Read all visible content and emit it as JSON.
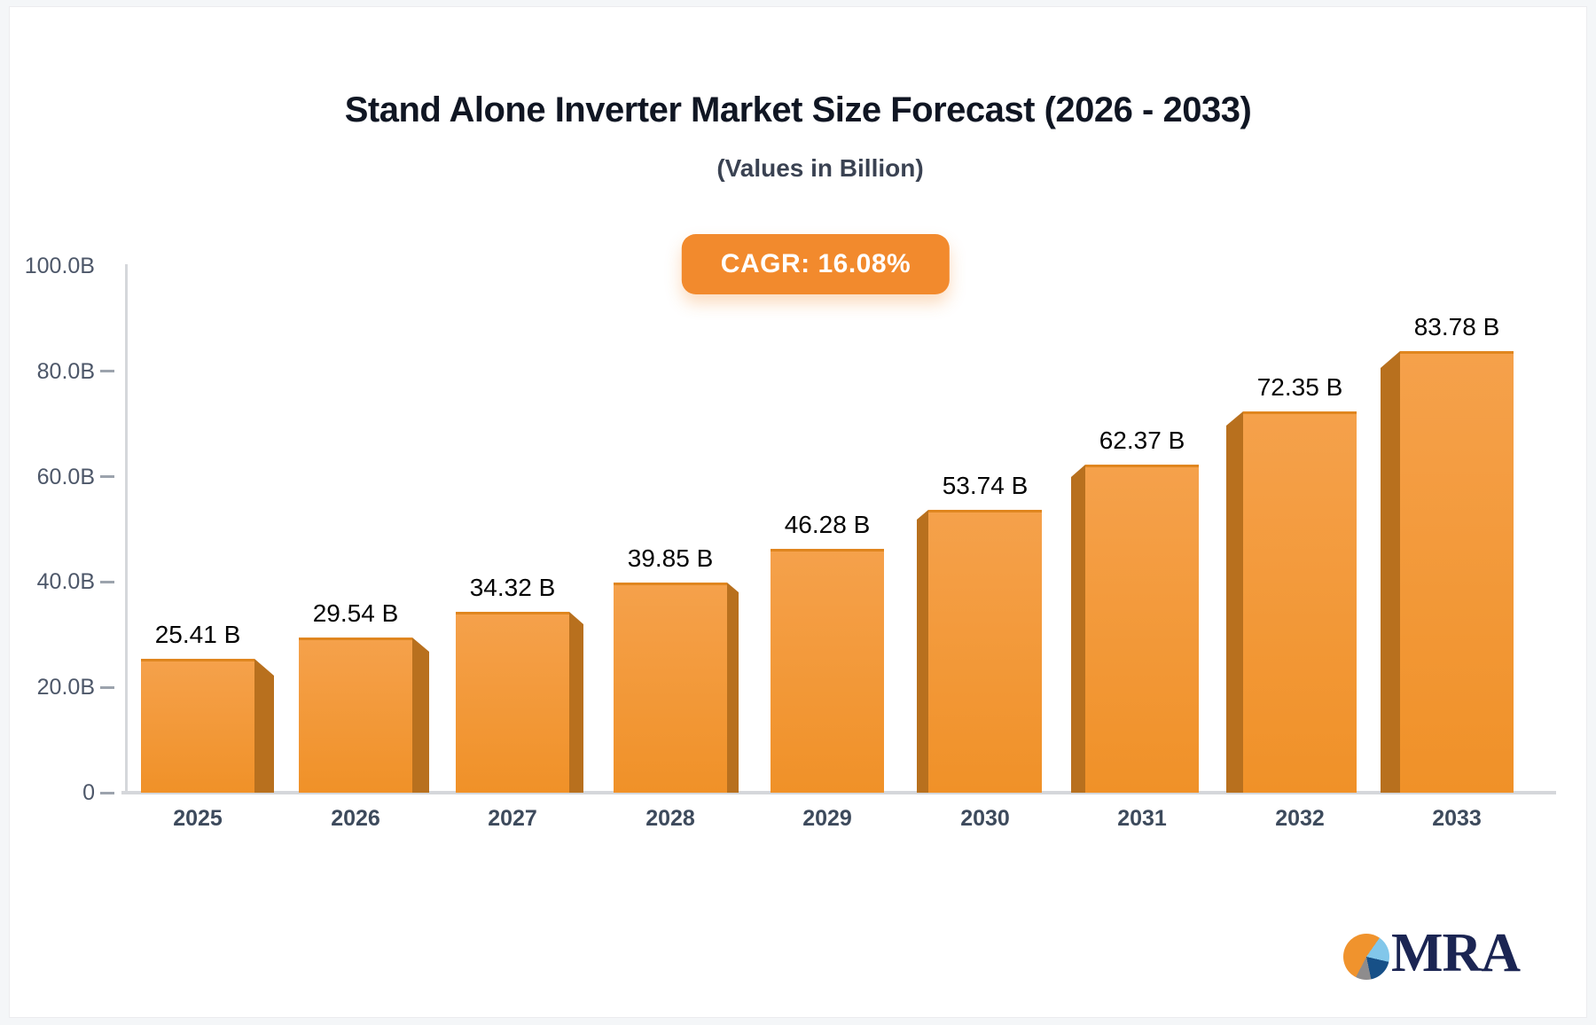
{
  "page": {
    "cagr_badge_label": "CAGR: 16.08%"
  },
  "chart_data": {
    "type": "bar",
    "title": "Stand Alone Inverter Market Size Forecast (2026 - 2033)",
    "subtitle": "(Values in Billion)",
    "annotation": "CAGR: 16.08%",
    "categories": [
      "2025",
      "2026",
      "2027",
      "2028",
      "2029",
      "2030",
      "2031",
      "2032",
      "2033"
    ],
    "values": [
      25.41,
      29.54,
      34.32,
      39.85,
      46.28,
      53.74,
      62.37,
      72.35,
      83.78
    ],
    "value_labels": [
      "25.41 B",
      "29.54 B",
      "34.32 B",
      "39.85 B",
      "46.28 B",
      "53.74 B",
      "62.37 B",
      "72.35 B",
      "83.78 B"
    ],
    "ylim": [
      0,
      100
    ],
    "grid": false,
    "legend": false,
    "y_axis": {
      "labels": [
        "100.0B",
        "80.0B",
        "60.0B",
        "40.0B",
        "20.0B",
        "0"
      ],
      "values": [
        100,
        80,
        60,
        40,
        20,
        0
      ],
      "dash": [
        false,
        true,
        true,
        true,
        true,
        true
      ]
    }
  },
  "colors": {
    "title": "#101623",
    "subtitle": "#3a4252",
    "badge_bg": "#F28A2D",
    "badge_text": "#FFFFFF",
    "axis_line": "#D5D7DB",
    "tick_dash": "#9CA3AD",
    "y_label": "#4D5769",
    "x_label": "#3D4A5C",
    "value_label": "#050505",
    "bar_face_top": "#F5A14B",
    "bar_face_bottom": "#F09128",
    "bar_top_edge": "#E0861F",
    "bar_side": "#B8701E"
  },
  "logo": {
    "text": "MRA",
    "text_color": "#1B2553",
    "pie_segments": [
      {
        "name": "orange-slice",
        "color": "#F0932D",
        "from": 0,
        "to": 35
      },
      {
        "name": "light-blue-slice",
        "color": "#82C7EA",
        "from": 35,
        "to": 103
      },
      {
        "name": "navy-slice",
        "color": "#175087",
        "from": 103,
        "to": 168
      },
      {
        "name": "gray-slice",
        "color": "#8E8C8D",
        "from": 168,
        "to": 207
      },
      {
        "name": "orange-slice",
        "color": "#F0932D",
        "from": 207,
        "to": 360
      }
    ]
  }
}
